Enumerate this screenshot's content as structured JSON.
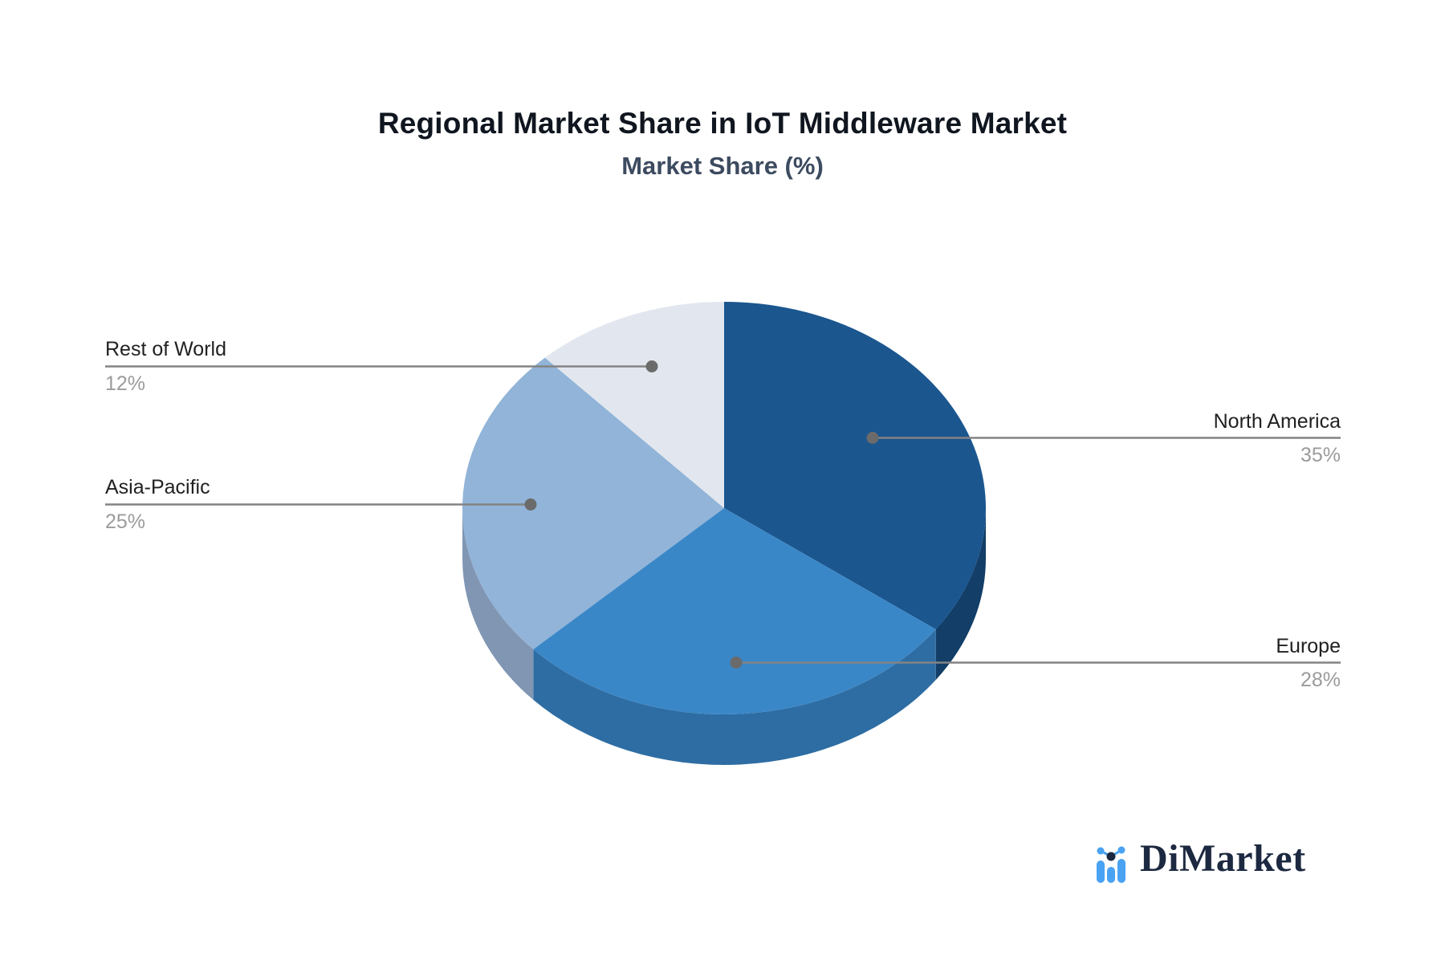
{
  "header": {
    "title": "Regional Market Share in IoT Middleware Market",
    "subtitle": "Market Share (%)"
  },
  "chart_data": {
    "type": "pie",
    "title": "Regional Market Share in IoT Middleware Market",
    "subtitle": "Market Share (%)",
    "unit": "%",
    "effect": "3d",
    "direction": "clockwise",
    "start_angle_deg": 0,
    "legend_position": "callouts",
    "slices": [
      {
        "label": "North America",
        "value": 35,
        "display": "35%",
        "color": "#1b568f",
        "side_color": "#123e67"
      },
      {
        "label": "Europe",
        "value": 28,
        "display": "28%",
        "color": "#3a87c8",
        "side_color": "#2e6da3"
      },
      {
        "label": "Asia-Pacific",
        "value": 25,
        "display": "25%",
        "color": "#91b4d8",
        "side_color": "#8096b3"
      },
      {
        "label": "Rest of World",
        "value": 12,
        "display": "12%",
        "color": "#e2e7ef",
        "side_color": "#c2cbd8"
      }
    ],
    "style": {
      "callout_line_color": "#838383",
      "callout_dot_color": "#6b6b6b",
      "label_color": "#212121",
      "value_color": "#9b9b9b",
      "title_color": "#10161f",
      "subtitle_color": "#3d4b60",
      "background": "#ffffff"
    }
  },
  "branding": {
    "logo_text": "DiMarket",
    "logo_icon": "bar-chart-logo-icon",
    "logo_text_color": "#1c2940",
    "logo_accent_color": "#4aa2f3"
  }
}
